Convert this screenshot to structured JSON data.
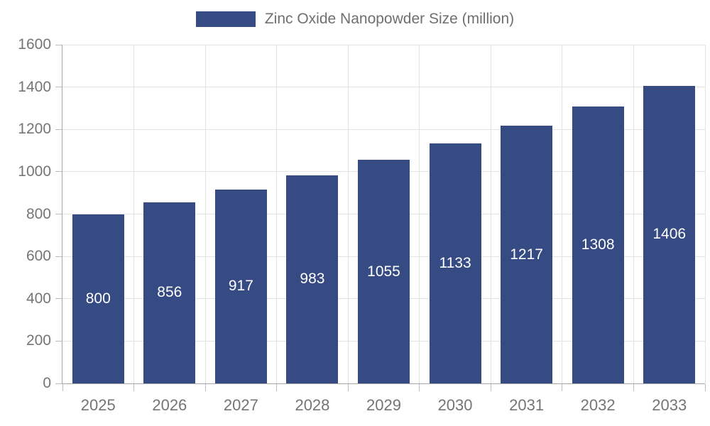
{
  "chart_data": {
    "type": "bar",
    "title": "Zinc Oxide Nanopowder Size (million)",
    "categories": [
      "2025",
      "2026",
      "2027",
      "2028",
      "2029",
      "2030",
      "2031",
      "2032",
      "2033"
    ],
    "values": [
      800,
      856,
      917,
      983,
      1055,
      1133,
      1217,
      1308,
      1406
    ],
    "xlabel": "",
    "ylabel": "",
    "ylim": [
      0,
      1600
    ],
    "yticks": [
      0,
      200,
      400,
      600,
      800,
      1000,
      1200,
      1400,
      1600
    ],
    "grid": true,
    "legend_position": "top",
    "bar_label_position": "center"
  },
  "colors": {
    "bar_fill": "#364a84",
    "bar_label_text": "#ffffff",
    "axis_line": "#a6a6a6",
    "tick_line": "#b8bcc6",
    "gridline": "#e3e3e3",
    "tick_text": "#757575",
    "legend_text": "#6f6f6f"
  }
}
